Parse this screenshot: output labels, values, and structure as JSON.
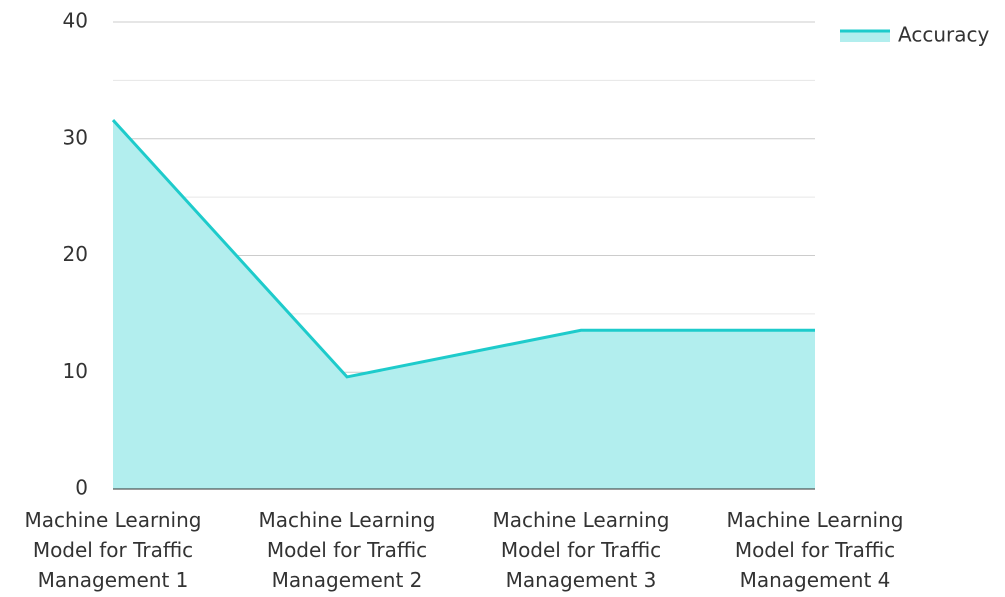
{
  "chart_data": {
    "type": "area",
    "categories": [
      "Machine Learning Model for Traffic Management 1",
      "Machine Learning Model for Traffic Management 2",
      "Machine Learning Model for Traffic Management 3",
      "Machine Learning Model for Traffic Management 4"
    ],
    "series": [
      {
        "name": "Accuracy",
        "color": "#1ecbcb",
        "fill": "#b2eeee",
        "values": [
          31.6,
          9.6,
          13.6,
          13.6
        ]
      }
    ],
    "ylim": [
      0,
      40
    ],
    "yticks": [
      0,
      10,
      20,
      30,
      40
    ],
    "minor_yticks": [
      5,
      15,
      25,
      35
    ],
    "grid": true,
    "legend": "top-right"
  }
}
